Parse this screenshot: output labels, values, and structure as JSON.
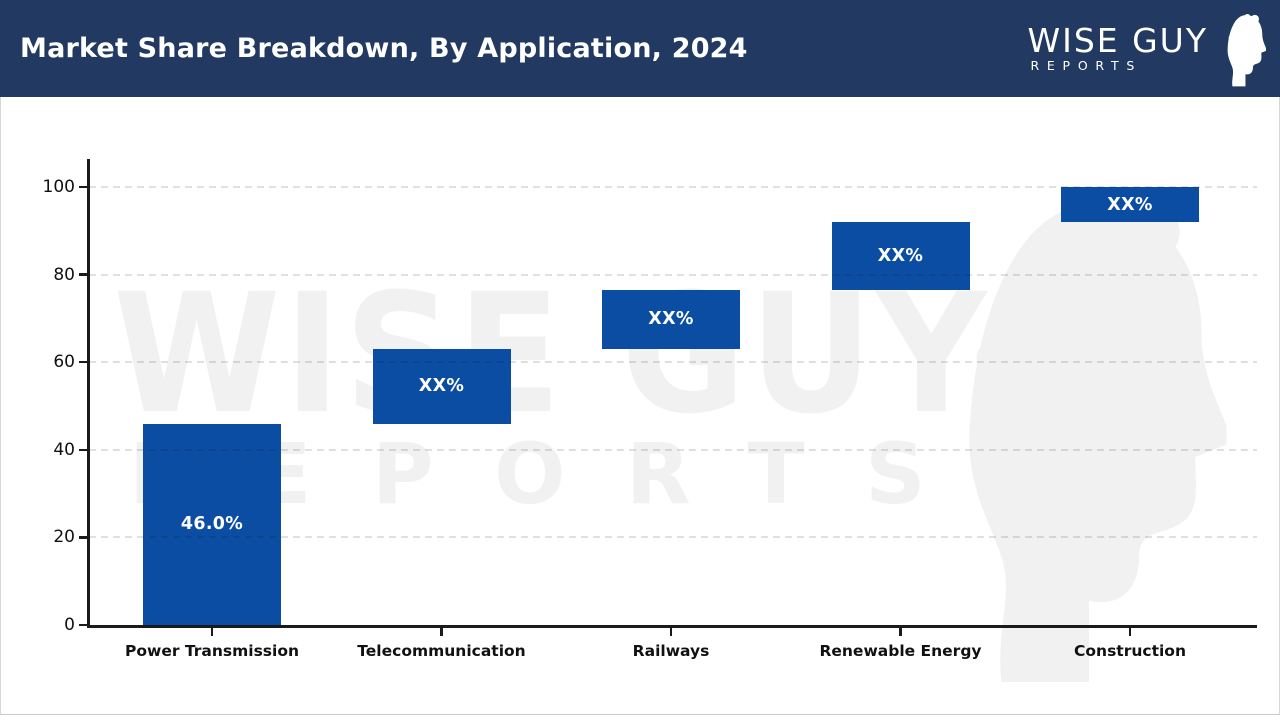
{
  "header": {
    "title": "Market Share Breakdown, By Application, 2024",
    "logo": {
      "line1": "WISE GUY",
      "line2": "REPORTS"
    }
  },
  "watermark": {
    "line1": "WISE GUY",
    "line2": "REPORTS"
  },
  "colors": {
    "header_bg": "#223a61",
    "bar": "#0b4da2",
    "text_on_dark": "#ffffff",
    "axis": "#1a1a1a",
    "grid": "rgba(17,17,17,0.13)",
    "watermark": "#f1f1f1"
  },
  "chart_data": {
    "type": "bar",
    "subtype": "waterfall",
    "title": "Market Share Breakdown, By Application, 2024",
    "categories": [
      "Power Transmission",
      "Telecommunication",
      "Railways",
      "Renewable Energy",
      "Construction"
    ],
    "series": [
      {
        "name": "Market Share (%)",
        "ranges": [
          [
            0,
            46
          ],
          [
            46,
            63
          ],
          [
            63,
            76.5
          ],
          [
            76.5,
            92
          ],
          [
            92,
            100
          ]
        ],
        "segment_sizes": [
          46,
          17,
          13.5,
          15.5,
          8
        ]
      }
    ],
    "bar_labels": [
      "46.0%",
      "XX%",
      "XX%",
      "XX%",
      "XX%"
    ],
    "xlabel": "",
    "ylabel": "",
    "ylim": [
      0,
      100
    ],
    "yticks": [
      0,
      20,
      40,
      60,
      80,
      100
    ],
    "grid": "horizontal-dashed",
    "legend": "none"
  }
}
